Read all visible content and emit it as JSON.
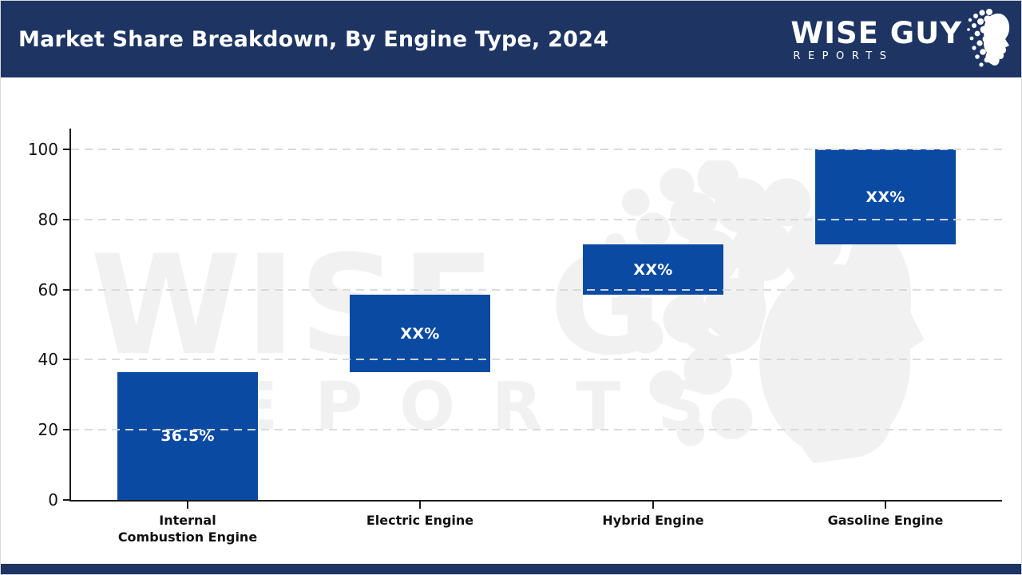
{
  "header": {
    "title": "Market Share Breakdown, By Engine Type, 2024",
    "logo": {
      "wordmark": "WISE GUY",
      "subtitle": "REPORTS"
    }
  },
  "watermark": {
    "wordmark": "WISE GUY",
    "subtitle": "REPORTS"
  },
  "colors": {
    "banner_navy": "#1e3563",
    "bar_blue": "#0b4aa2",
    "grid_gray": "#d9d9d9",
    "axis_black": "#1a1a1a",
    "watermark_gray": "#f1f1f1"
  },
  "chart_data": {
    "type": "bar",
    "variant": "waterfall",
    "title": "Market Share Breakdown, By Engine Type, 2024",
    "xlabel": "",
    "ylabel": "",
    "ylim": [
      0,
      105
    ],
    "y_ticks": [
      0,
      20,
      40,
      60,
      80,
      100
    ],
    "grid": {
      "horizontal": true,
      "style": "dashed"
    },
    "legend": null,
    "categories": [
      "Internal Combustion Engine",
      "Electric Engine",
      "Hybrid Engine",
      "Gasoline Engine"
    ],
    "category_label_lines": [
      [
        "Internal",
        "Combustion Engine"
      ],
      [
        "Electric Engine"
      ],
      [
        "Hybrid Engine"
      ],
      [
        "Gasoline Engine"
      ]
    ],
    "bars": [
      {
        "category": "Internal Combustion Engine",
        "start": 0,
        "end": 36.5,
        "value": 36.5,
        "label": "36.5%"
      },
      {
        "category": "Electric Engine",
        "start": 36.5,
        "end": 58.5,
        "value": 22,
        "label": "XX%"
      },
      {
        "category": "Hybrid Engine",
        "start": 58.5,
        "end": 73,
        "value": 14.5,
        "label": "XX%"
      },
      {
        "category": "Gasoline Engine",
        "start": 73,
        "end": 100,
        "value": 27,
        "label": "XX%"
      }
    ],
    "bar_color": "#0b4aa2",
    "bar_label_color": "#ffffff"
  }
}
